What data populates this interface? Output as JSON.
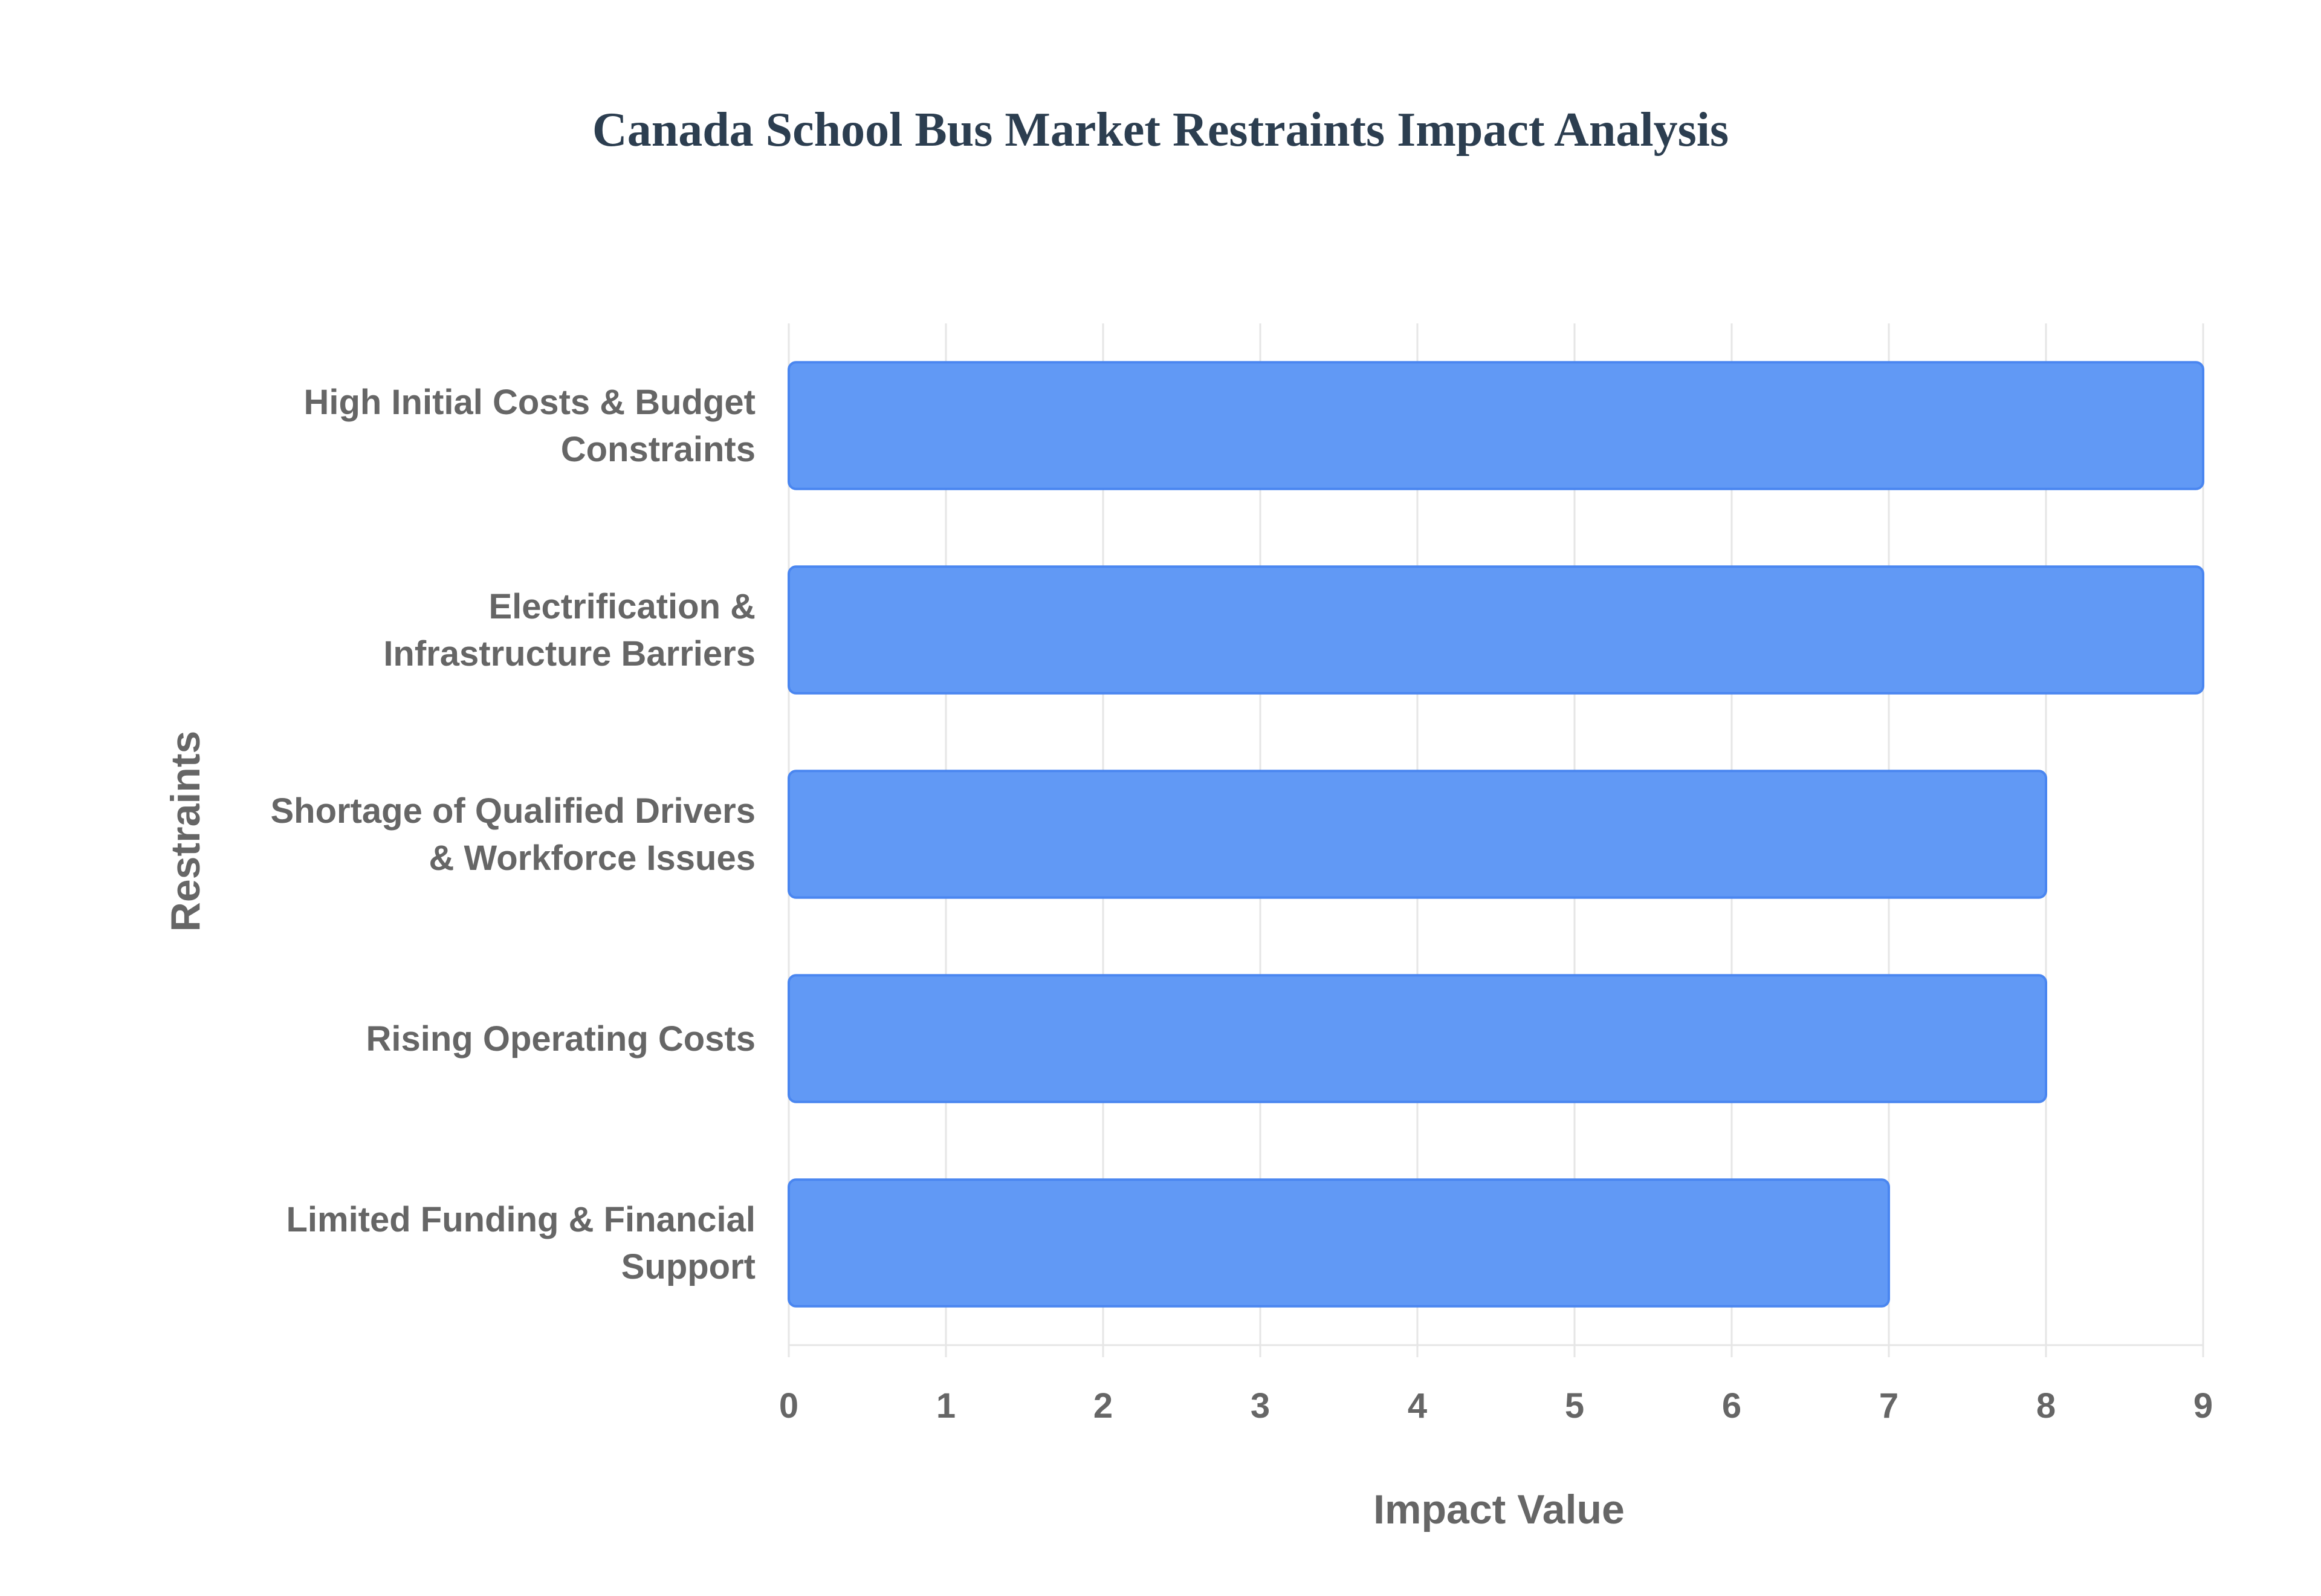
{
  "chart_data": {
    "type": "bar",
    "orientation": "horizontal",
    "title": "Canada School Bus Market Restraints Impact Analysis",
    "xlabel": "Impact Value",
    "ylabel": "Restraints",
    "categories": [
      [
        "High Initial Costs & Budget",
        "Constraints"
      ],
      [
        "Electrification &",
        "Infrastructure Barriers"
      ],
      [
        "Shortage of Qualified Drivers",
        "& Workforce Issues"
      ],
      [
        "Rising Operating Costs"
      ],
      [
        "Limited Funding & Financial",
        "Support"
      ]
    ],
    "values": [
      9,
      9,
      8,
      8,
      7
    ],
    "xlim": [
      0,
      9
    ],
    "xticks": [
      "0",
      "1",
      "2",
      "3",
      "4",
      "5",
      "6",
      "7",
      "8",
      "9"
    ],
    "grid": true,
    "bar_color": "#6199f5",
    "bar_border_color": "#4a86f0",
    "grid_color": "#e6e6e6"
  }
}
